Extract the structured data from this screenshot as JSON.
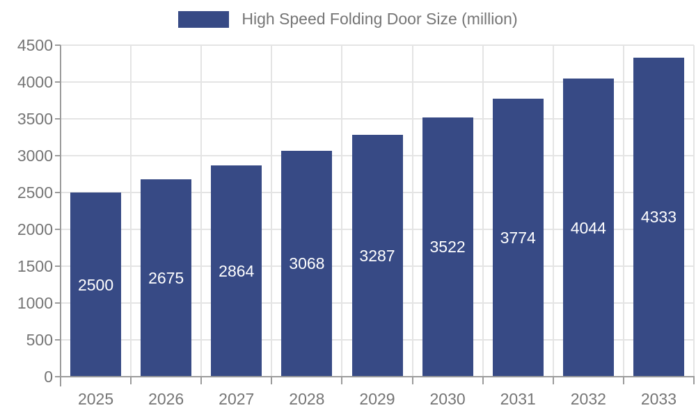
{
  "legend": {
    "label": "High Speed Folding Door Size (million)",
    "swatch_icon": "legend-swatch",
    "position": "top-center"
  },
  "colors": {
    "bar": "#374a85",
    "bar_label": "#ffffff",
    "axis": "#9b9b9b",
    "grid": "#e4e4e4",
    "tick_text": "#757575",
    "background": "#ffffff"
  },
  "chart_data": {
    "type": "bar",
    "title": "",
    "xlabel": "",
    "ylabel": "",
    "categories": [
      "2025",
      "2026",
      "2027",
      "2028",
      "2029",
      "2030",
      "2031",
      "2032",
      "2033"
    ],
    "series": [
      {
        "name": "High Speed Folding Door Size (million)",
        "values": [
          2500,
          2675,
          2864,
          3068,
          3287,
          3522,
          3774,
          4044,
          4333
        ]
      }
    ],
    "data_labels_shown": true,
    "data_label_position": "inside-middle",
    "ylim": [
      0,
      4500
    ],
    "ytick_step": 500,
    "ytick_labels": [
      "0",
      "500",
      "1000",
      "1500",
      "2000",
      "2500",
      "3000",
      "3500",
      "4000",
      "4500"
    ],
    "grid": true,
    "grid_vertical": true,
    "legend_position": "top"
  }
}
